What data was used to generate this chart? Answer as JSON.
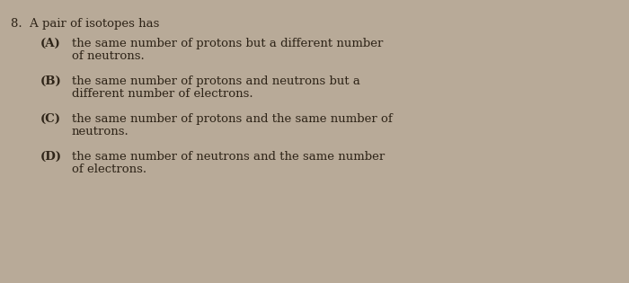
{
  "background_color": "#b8aa98",
  "text_color": "#2e2418",
  "question_number": "8.",
  "question_text": "A pair of isotopes has",
  "options": [
    {
      "label": "(A)",
      "line1": "the same number of protons but a different number",
      "line2": "of neutrons."
    },
    {
      "label": "(B)",
      "line1": "the same number of protons and neutrons but a",
      "line2": "different number of electrons."
    },
    {
      "label": "(C)",
      "line1": "the same number of protons and the same number of",
      "line2": "neutrons."
    },
    {
      "label": "(D)",
      "line1": "the same number of neutrons and the same number",
      "line2": "of electrons."
    }
  ],
  "font_size": 9.5,
  "fig_width": 7.0,
  "fig_height": 3.15,
  "dpi": 100
}
